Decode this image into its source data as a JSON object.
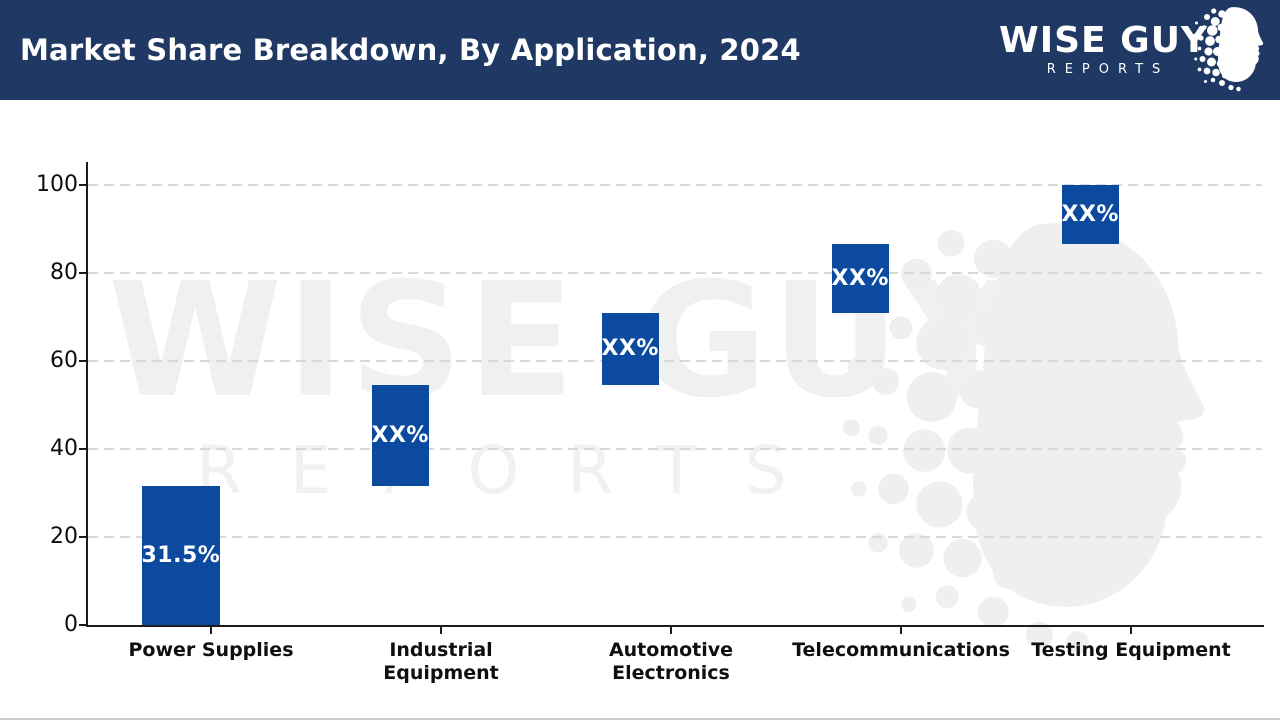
{
  "header": {
    "background": "#1f3864",
    "title": "Market Share Breakdown, By Application, 2024",
    "logo": {
      "wordmark": "WISE GUY",
      "sub": "REPORTS"
    }
  },
  "watermark": {
    "line1": "WISE GUY",
    "line2": "REPORTS"
  },
  "chart_data": {
    "type": "bar",
    "variant": "waterfall",
    "title": "Market Share Breakdown, By Application, 2024",
    "categories": [
      "Power Supplies",
      "Industrial\nEquipment",
      "Automotive\nElectronics",
      "Telecommunications",
      "Testing Equipment"
    ],
    "series": [
      {
        "name": "Market share by application (%)",
        "segments": [
          {
            "category": "Power Supplies",
            "start": 0,
            "end": 31.5,
            "label": "31.5%"
          },
          {
            "category": "Industrial Equipment",
            "start": 31.5,
            "end": 54.5,
            "label": "XX%"
          },
          {
            "category": "Automotive Electronics",
            "start": 54.5,
            "end": 71,
            "label": "XX%"
          },
          {
            "category": "Telecommunications",
            "start": 71,
            "end": 86.5,
            "label": "XX%"
          },
          {
            "category": "Testing Equipment",
            "start": 86.5,
            "end": 100,
            "label": "XX%"
          }
        ]
      }
    ],
    "xlabel": "",
    "ylabel": "",
    "ylim": [
      0,
      100
    ],
    "yticks": [
      0,
      20,
      40,
      60,
      80,
      100
    ],
    "grid": "horizontal-dashed",
    "legend": "none",
    "bar_color": "#0b4a9f",
    "bar_label_color": "#ffffff",
    "gridline_color": "#d8d8d8",
    "axis_color": "#1c1c1c"
  }
}
